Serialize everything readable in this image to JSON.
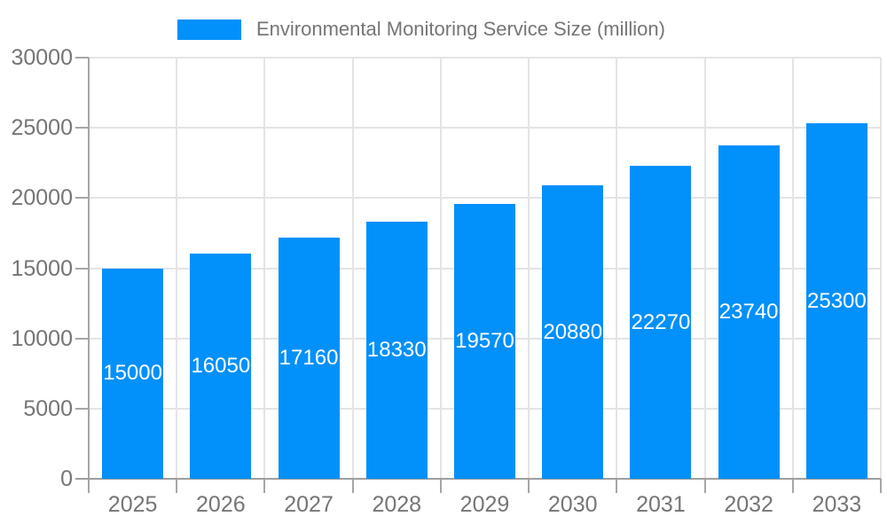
{
  "legend": {
    "label": "Environmental Monitoring Service Size (million)"
  },
  "colors": {
    "bar": "#0290FA",
    "legend_swatch": "#0290FA",
    "axis_text": "#757575",
    "title_text": "#757575",
    "gridline": "#E4E4E4",
    "axis_line": "#9E9E9E",
    "bar_label_text": "#FFFFFF",
    "background": "#FFFFFF"
  },
  "chart_data": {
    "type": "bar",
    "title": "Environmental Monitoring Service Size (million)",
    "series_name": "Environmental Monitoring Service Size (million)",
    "categories": [
      "2025",
      "2026",
      "2027",
      "2028",
      "2029",
      "2030",
      "2031",
      "2032",
      "2033"
    ],
    "values": [
      15000,
      16050,
      17160,
      18330,
      19570,
      20880,
      22270,
      23740,
      25300
    ],
    "bar_value_labels": [
      "15000",
      "16050",
      "17160",
      "18330",
      "19570",
      "20880",
      "22270",
      "23740",
      "25300"
    ],
    "xlabel": "",
    "ylabel": "",
    "ylim": [
      0,
      30000
    ],
    "yticks": [
      0,
      5000,
      10000,
      15000,
      20000,
      25000,
      30000
    ],
    "ytick_labels": [
      "0",
      "5000",
      "10000",
      "15000",
      "20000",
      "25000",
      "30000"
    ],
    "grid": true,
    "legend_position": "top"
  }
}
